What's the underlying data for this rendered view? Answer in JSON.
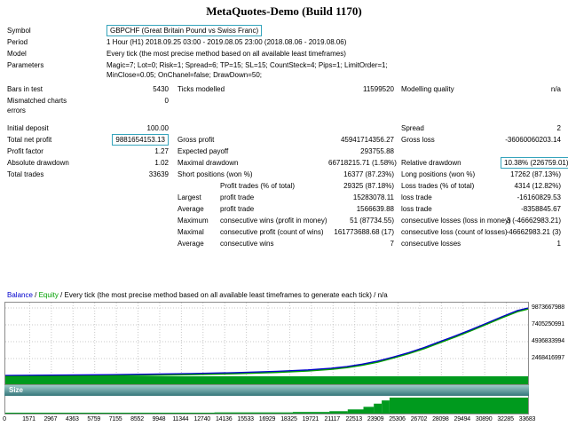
{
  "title": "MetaQuotes-Demo (Build 1170)",
  "colors": {
    "balance_line": "#0000cc",
    "equity_line": "#00a000",
    "band": "#009a1e",
    "histogram": "#009a1e",
    "highlight_border": "#35a4bc",
    "grid": "#c8c8c8",
    "size_bar_start": "#9fcaca",
    "size_bar_end": "#35767a"
  },
  "table": {
    "rows": [
      {
        "l1": "Symbol",
        "span": "GBPCHF (Great Britain Pound vs Swiss Franc)",
        "span_highlight": true
      },
      {
        "l1": "Period",
        "span": "1 Hour (H1) 2018.09.25 03:00 - 2019.08.05 23:00 (2018.08.06 - 2019.08.06)"
      },
      {
        "l1": "Model",
        "span": "Every tick (the most precise method based on all available least timeframes)"
      },
      {
        "l1": "Parameters",
        "span": "Magic=7; Lot=0; Risk=1; Spread=6; TP=15; SL=15; CountSteck=4; Pips=1; LimitOrder=1; MinClose=0.05; OnChanel=false; DrawDown=50;",
        "span_wrap": true,
        "spacer_after": 4
      },
      {
        "l1": "Bars in test",
        "v1": "5430",
        "l2": "Ticks modelled",
        "l2_wide": true,
        "v2": "11599520",
        "l3": "Modelling quality",
        "v3": "n/a"
      },
      {
        "l1": "Mismatched charts errors",
        "l1_wrap": true,
        "v1": "0",
        "spacer_after": 8
      },
      {
        "l1": "Initial deposit",
        "v1": "100.00",
        "l3": "Spread",
        "v3": "2"
      },
      {
        "l1": "Total net profit",
        "v1": "9881654153.13",
        "v1_highlight": true,
        "l2": "Gross profit",
        "l2_wide": true,
        "v2": "45941714356.27",
        "l3": "Gross loss",
        "v3": "-36060060203.14"
      },
      {
        "l1": "Profit factor",
        "v1": "1.27",
        "l2": "Expected payoff",
        "l2_wide": true,
        "v2": "293755.88"
      },
      {
        "l1": "Absolute drawdown",
        "v1": "1.02",
        "l2": "Maximal drawdown",
        "l2_wide": true,
        "v2": "66718215.71 (1.58%)",
        "l3": "Relative drawdown",
        "v3": "10.38% (226759.01)",
        "v3_highlight": true
      },
      {
        "l1": "Total trades",
        "v1": "33639",
        "l2": "Short positions (won %)",
        "l2_wide": true,
        "v2": "16377 (87.23%)",
        "l3": "Long positions (won %)",
        "v3": "17262 (87.13%)"
      },
      {
        "l2": "Profit trades (% of total)",
        "v2": "29325 (87.18%)",
        "l3": "Loss trades (% of total)",
        "v3": "4314 (12.82%)"
      },
      {
        "p": "Largest",
        "l2": "profit trade",
        "v2": "15283078.11",
        "l3": "loss trade",
        "v3": "-16160829.53"
      },
      {
        "p": "Average",
        "l2": "profit trade",
        "v2": "1566639.88",
        "l3": "loss trade",
        "v3": "-8358845.67"
      },
      {
        "p": "Maximum",
        "l2": "consecutive wins (profit in money)",
        "v2": "51 (87734.55)",
        "l3": "consecutive losses (loss in money)",
        "v3": "3 (-46662983.21)"
      },
      {
        "p": "Maximal",
        "l2": "consecutive profit (count of wins)",
        "v2": "161773688.68 (17)",
        "l3": "consecutive loss (count of losses)",
        "v3": "-46662983.21 (3)"
      },
      {
        "p": "Average",
        "l2": "consecutive wins",
        "v2": "7",
        "l3": "consecutive losses",
        "v3": "1"
      }
    ]
  },
  "chart_data": {
    "type": "line",
    "title": "",
    "xlabel": "",
    "ylabel": "",
    "grid": true,
    "legend_position": "top-left",
    "legend": {
      "items": [
        {
          "text": "Balance",
          "color": "#0000cc"
        },
        {
          "text": " / ",
          "color": "#000000"
        },
        {
          "text": "Equity",
          "color": "#00a000"
        },
        {
          "text": " / ",
          "color": "#000000"
        },
        {
          "text": "Every tick (the most precise method based on all available least timeframes to generate each tick)",
          "color": "#000000"
        },
        {
          "text": " / ",
          "color": "#000000"
        },
        {
          "text": "n/a",
          "color": "#000000"
        }
      ]
    },
    "x_max": 33683,
    "y_max": 10400000000,
    "ylim": [
      0,
      10400000000
    ],
    "x_ticks": [
      0,
      1571,
      2967,
      4363,
      5759,
      7155,
      8552,
      9948,
      11344,
      12740,
      14136,
      15533,
      16929,
      18325,
      19721,
      21117,
      22513,
      23909,
      25306,
      26702,
      28098,
      29494,
      30890,
      32285,
      33683
    ],
    "y_ticks": [
      2468416997,
      4936833994,
      7405250991,
      9873667988
    ],
    "series": [
      {
        "name": "Balance",
        "color": "#0000cc",
        "points": [
          [
            0,
            100
          ],
          [
            3000,
            40000000
          ],
          [
            6000,
            95000000
          ],
          [
            9000,
            170000000
          ],
          [
            12000,
            270000000
          ],
          [
            15000,
            420000000
          ],
          [
            17500,
            600000000
          ],
          [
            19500,
            800000000
          ],
          [
            21000,
            1050000000
          ],
          [
            22000,
            1300000000
          ],
          [
            23000,
            1650000000
          ],
          [
            24000,
            2100000000
          ],
          [
            25000,
            2700000000
          ],
          [
            26000,
            3350000000
          ],
          [
            27000,
            4100000000
          ],
          [
            28000,
            4950000000
          ],
          [
            29000,
            5800000000
          ],
          [
            30000,
            6700000000
          ],
          [
            31000,
            7650000000
          ],
          [
            32000,
            8600000000
          ],
          [
            33000,
            9500000000
          ],
          [
            33683,
            9881654253
          ]
        ]
      },
      {
        "name": "Equity",
        "color": "#00a000",
        "points": [
          [
            0,
            100
          ],
          [
            3000,
            40000000
          ],
          [
            6000,
            95000000
          ],
          [
            9000,
            170000000
          ],
          [
            12000,
            270000000
          ],
          [
            15000,
            420000000
          ],
          [
            17500,
            600000000
          ],
          [
            19500,
            800000000
          ],
          [
            21000,
            1050000000
          ],
          [
            22000,
            1300000000
          ],
          [
            23000,
            1650000000
          ],
          [
            24000,
            2100000000
          ],
          [
            25000,
            2700000000
          ],
          [
            26000,
            3350000000
          ],
          [
            27000,
            4100000000
          ],
          [
            28000,
            4950000000
          ],
          [
            29000,
            5800000000
          ],
          [
            30000,
            6700000000
          ],
          [
            31000,
            7650000000
          ],
          [
            32000,
            8600000000
          ],
          [
            33000,
            9500000000
          ],
          [
            33683,
            9881654253
          ]
        ]
      }
    ],
    "size_panel": {
      "label": "Size",
      "steps": [
        [
          0,
          0.4,
          0.05
        ],
        [
          0.4,
          0.55,
          0.07
        ],
        [
          0.55,
          0.62,
          0.1
        ],
        [
          0.62,
          0.655,
          0.15
        ],
        [
          0.655,
          0.685,
          0.26
        ],
        [
          0.685,
          0.705,
          0.42
        ],
        [
          0.705,
          0.72,
          0.62
        ],
        [
          0.72,
          0.735,
          0.82
        ],
        [
          0.735,
          1.0,
          1.0
        ]
      ]
    }
  }
}
